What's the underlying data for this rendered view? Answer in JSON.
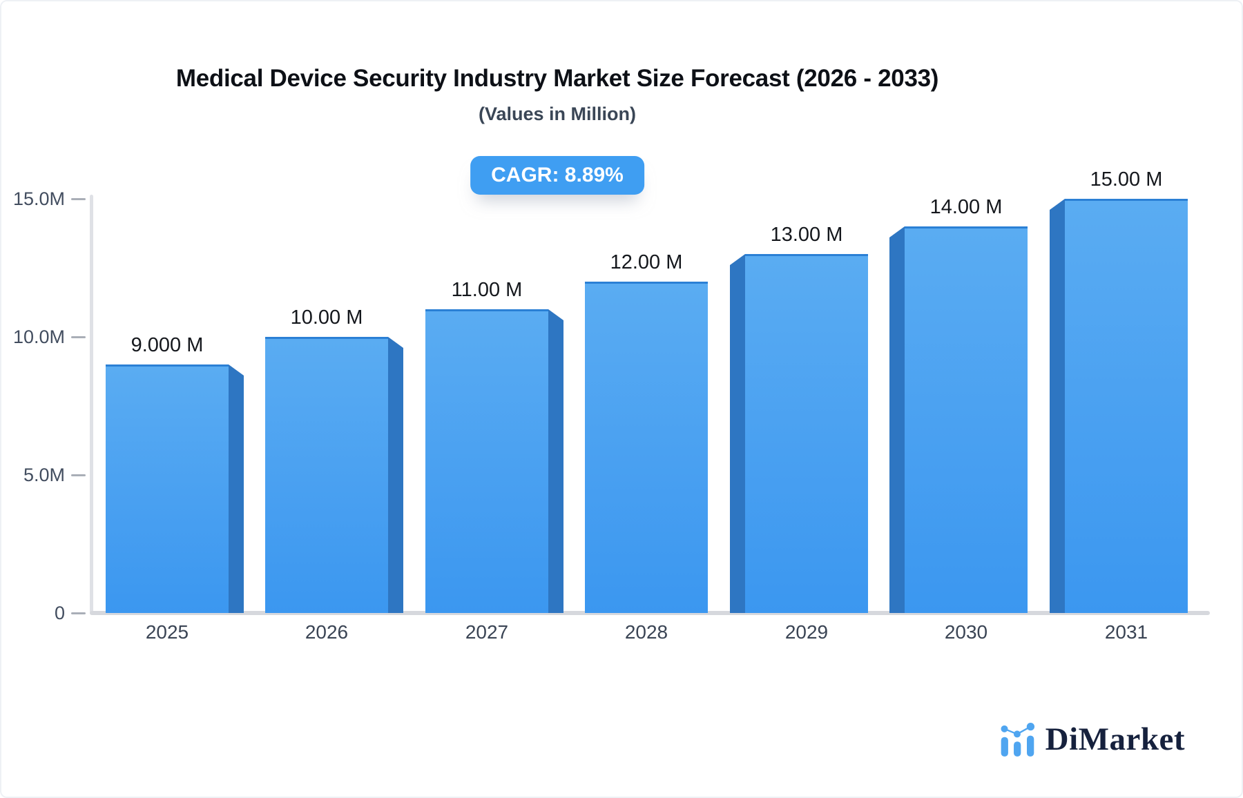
{
  "header": {
    "title": "Medical Device Security Industry Market Size Forecast (2026 - 2033)",
    "subtitle": "(Values in Million)"
  },
  "badge": {
    "label": "CAGR: 8.89%"
  },
  "brand": {
    "name": "DiMarket"
  },
  "chart_data": {
    "type": "bar",
    "title": "Medical Device Security Industry Market Size Forecast (2026 - 2033)",
    "subtitle": "(Values in Million)",
    "unit": "Million",
    "categories": [
      "2025",
      "2026",
      "2027",
      "2028",
      "2029",
      "2030",
      "2031"
    ],
    "values": [
      9,
      10,
      11,
      12,
      13,
      14,
      15
    ],
    "value_labels": [
      "9.000 M",
      "10.00 M",
      "11.00 M",
      "12.00 M",
      "13.00 M",
      "14.00 M",
      "15.00 M"
    ],
    "cagr": "8.89%",
    "ylim": [
      0,
      15
    ],
    "grid": false,
    "legend": "none",
    "y_ticks": [
      {
        "label": "15.0M",
        "value": 15
      },
      {
        "label": "10.0M",
        "value": 10
      },
      {
        "label": "5.0M",
        "value": 5
      },
      {
        "label": "0",
        "value": 0
      }
    ],
    "colors": {
      "bar_face_top": "#5aacf2",
      "bar_face_bottom": "#3b97f0",
      "bar_side": "#2e76c2",
      "badge_background": "#3f9ef2",
      "badge_text": "#ffffff",
      "axis_line": "#d6d8dd",
      "tick_text": "#424d5f",
      "value_text": "#14171c",
      "brand_text": "#16213d",
      "brand_icon": "#4fa5f0"
    }
  }
}
